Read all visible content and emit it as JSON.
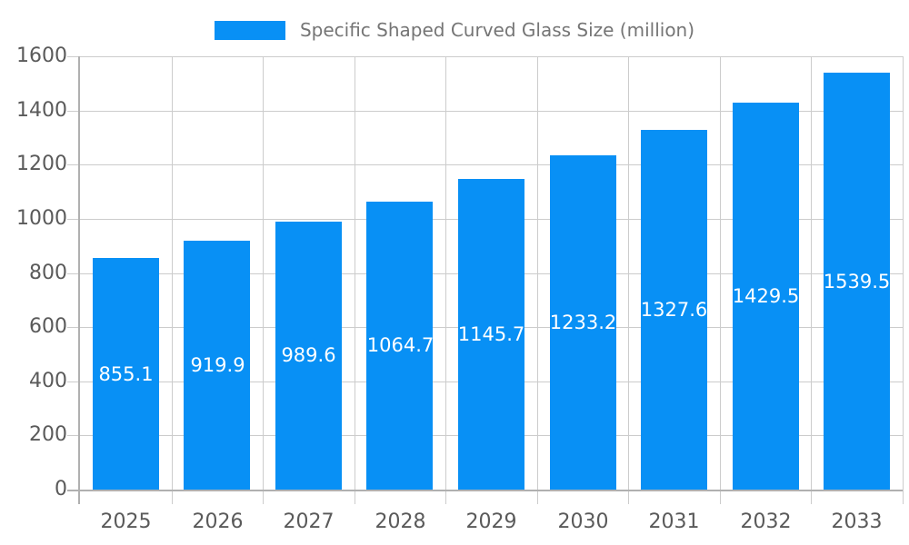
{
  "chart_data": {
    "type": "bar",
    "title": "Specific Shaped Curved Glass Size (million)",
    "categories": [
      "2025",
      "2026",
      "2027",
      "2028",
      "2029",
      "2030",
      "2031",
      "2032",
      "2033"
    ],
    "values": [
      855.1,
      919.9,
      989.6,
      1064.7,
      1145.7,
      1233.2,
      1327.6,
      1429.5,
      1539.5
    ],
    "value_labels": [
      "855.1",
      "919.9",
      "989.6",
      "1064.7",
      "1145.7",
      "1233.2",
      "1327.6",
      "1429.5",
      "1539.5"
    ],
    "xlabel": "",
    "ylabel": "",
    "ylim": [
      0,
      1600
    ],
    "y_ticks": [
      "0",
      "200",
      "400",
      "600",
      "800",
      "1000",
      "1200",
      "1400",
      "1600"
    ],
    "grid": true,
    "legend_position": "top-center",
    "value_labels_inside_bars": true
  },
  "colors": {
    "bar": "#0890f5",
    "legend_text": "#757575",
    "axis_text": "#5a5a5a",
    "grid_line": "#cccccc",
    "axis_line": "#b0b0b0",
    "value_text": "#ffffff",
    "background": "#ffffff"
  }
}
